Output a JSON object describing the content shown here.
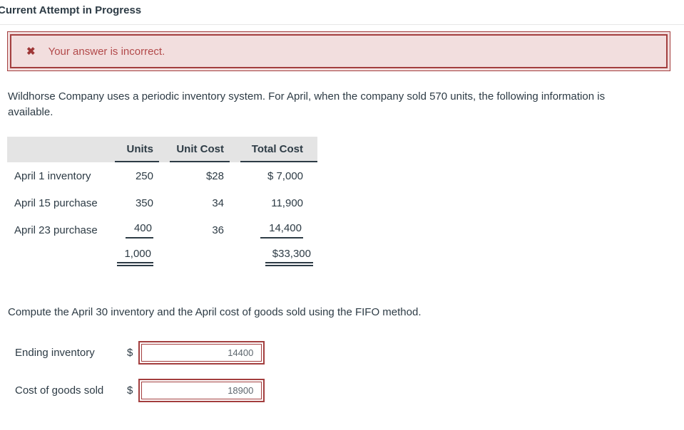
{
  "header": {
    "title": "Current Attempt in Progress"
  },
  "alert": {
    "icon_glyph": "✖",
    "message": "Your answer is incorrect."
  },
  "question": {
    "intro": "Wildhorse Company uses a periodic inventory system. For April, when the company sold 570 units, the following information is available.",
    "prompt": "Compute the April 30 inventory and the April cost of goods sold using the FIFO method."
  },
  "inventory_table": {
    "headers": {
      "units": "Units",
      "unit_cost": "Unit Cost",
      "total_cost": "Total Cost"
    },
    "rows": [
      {
        "label": "April 1 inventory",
        "units": "250",
        "unit_cost": "$28",
        "total_cost": "$ 7,000"
      },
      {
        "label": "April 15 purchase",
        "units": "350",
        "unit_cost": "34",
        "total_cost": "11,900"
      },
      {
        "label": "April 23 purchase",
        "units": "400",
        "unit_cost": "36",
        "total_cost": "14,400"
      }
    ],
    "totals": {
      "units": "1,000",
      "total_cost": "$33,300"
    }
  },
  "answers": {
    "ending_inventory": {
      "label": "Ending inventory",
      "currency": "$",
      "value": "14400"
    },
    "cost_of_goods_sold": {
      "label": "Cost of goods sold",
      "currency": "$",
      "value": "18900"
    }
  },
  "colors": {
    "alert_background": "#f2dede",
    "alert_border": "#a33e3e",
    "alert_text": "#b2494a",
    "input_border": "#a33e3e",
    "text_dark": "#2d3b45",
    "table_header_background": "#e4e4e4"
  }
}
